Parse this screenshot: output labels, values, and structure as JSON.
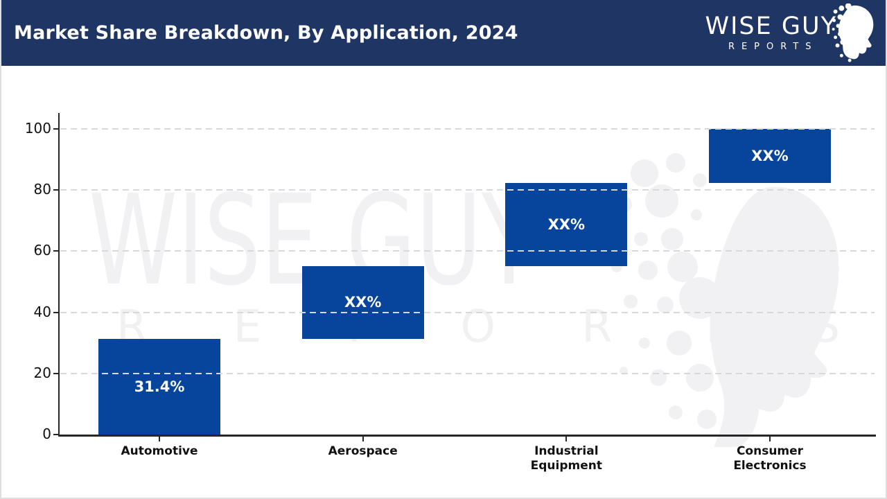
{
  "header": {
    "title": "Market Share Breakdown, By Application, 2024",
    "bg_color": "#1f3563",
    "logo": {
      "line1": "WISE GUY",
      "line2": "REPORTS"
    }
  },
  "watermark": {
    "line1": "WISE GUY",
    "line2": "R E P O R T S"
  },
  "chart_data": {
    "type": "bar",
    "subtype": "floating-waterfall",
    "title": "Market Share Breakdown, By Application, 2024",
    "categories": [
      "Automotive",
      "Aerospace",
      "Industrial Equipment",
      "Consumer Electronics"
    ],
    "segments": [
      {
        "category": "Automotive",
        "start": 0,
        "end": 31.4,
        "label": "31.4%"
      },
      {
        "category": "Aerospace",
        "start": 31.4,
        "end": 55,
        "label": "XX%"
      },
      {
        "category": "Industrial Equipment",
        "start": 55,
        "end": 82.4,
        "label": "XX%"
      },
      {
        "category": "Consumer Electronics",
        "start": 82.4,
        "end": 100,
        "label": "XX%"
      }
    ],
    "yticks": [
      0,
      20,
      40,
      60,
      80,
      100
    ],
    "ylim": [
      0,
      100
    ],
    "xlabel": "",
    "ylabel": "",
    "bar_color": "#07449c",
    "bar_label_color": "#ffffff",
    "grid": {
      "horizontal": true,
      "style": "dashed",
      "color": "#d8d8d8"
    },
    "legend": null
  }
}
